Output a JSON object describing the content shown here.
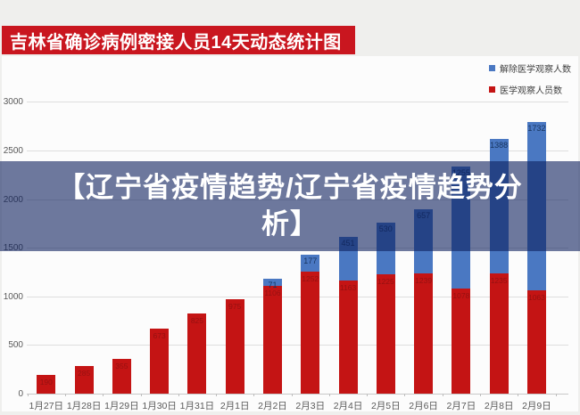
{
  "page": {
    "title_bar": {
      "text": "吉林省确诊病例密接人员14天动态统计图",
      "bg_color": "#c9161f",
      "text_color": "#ffffff"
    },
    "overlay": {
      "line1": "【辽宁省疫情趋势/辽宁省疫情趋势分",
      "line2": "析】",
      "bg_color": "rgba(13,32,94,0.60)",
      "text_color": "#ffffff"
    }
  },
  "legend": {
    "items": [
      {
        "label": "解除医学观察人数",
        "color": "#4a78c2"
      },
      {
        "label": "医学观察人员数",
        "color": "#c41414"
      }
    ]
  },
  "chart_data": {
    "type": "bar",
    "stacked": true,
    "title": "吉林省确诊病例密接人员14天动态统计图",
    "categories": [
      "1月27日",
      "1月28日",
      "1月29日",
      "1月30日",
      "1月31日",
      "2月1日",
      "2月2日",
      "2月3日",
      "2月4日",
      "2月5日",
      "2月6日",
      "2月7日",
      "2月8日",
      "2月9日"
    ],
    "series": [
      {
        "name": "医学观察人员数",
        "color": "#c41414",
        "label_color": "#7d0f0f",
        "values": [
          190,
          285,
          355,
          673,
          825,
          975,
          1106,
          1252,
          1163,
          1225,
          1239,
          1078,
          1235,
          1063
        ]
      },
      {
        "name": "解除医学观察人数",
        "color": "#4a78c2",
        "label_color": "#17345f",
        "values": [
          0,
          0,
          0,
          0,
          0,
          0,
          71,
          177,
          451,
          530,
          657,
          1255,
          1388,
          1732
        ]
      }
    ],
    "ylim": [
      0,
      3000
    ],
    "yticks": [
      0,
      500,
      1000,
      1500,
      2000,
      2500,
      3000
    ],
    "grid": true,
    "legend_position": "top-right",
    "xlabel": "",
    "ylabel": ""
  }
}
